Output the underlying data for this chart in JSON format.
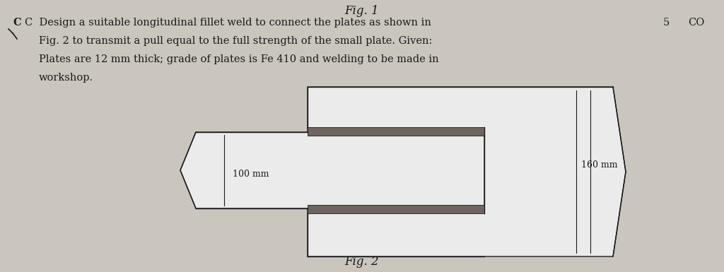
{
  "title": "Fig. 1",
  "title_fontsize": 12,
  "line1": "C  Design a suitable longitudinal fillet weld to connect the plates as shown in",
  "line2": "Fig. 2 to transmit a pull equal to the full strength of the small plate. Given:",
  "line3": "Plates are 12 mm thick; grade of plates is Fe 410 and welding to be made in",
  "line4": "workshop.",
  "mark": "5",
  "co": "CO",
  "bg_color": "#cac6be",
  "plate_fill": "#ebebeb",
  "weld_fill": "#6e6560",
  "line_color": "#1a1a1a",
  "label_100mm": "100 mm",
  "label_160mm": "160 mm",
  "text_fontsize": 10.5,
  "label_fontsize": 9,
  "fig_width": 10.24,
  "fig_height": 3.85,
  "dpi": 100,
  "checkmark": "C"
}
